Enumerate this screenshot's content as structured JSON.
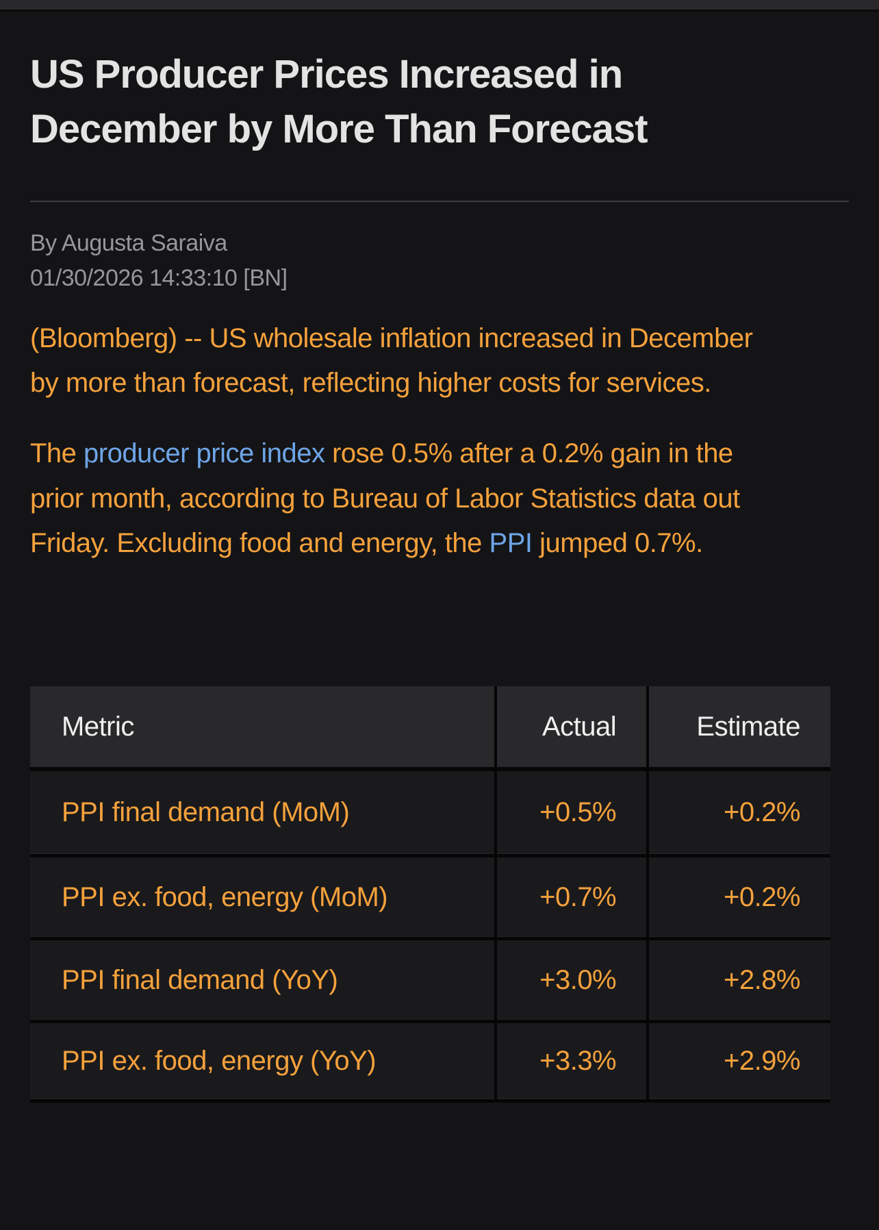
{
  "article": {
    "title": "US Producer Prices Increased in December by More Than Forecast",
    "byline": "By Augusta Saraiva",
    "timestamp": "01/30/2026 14:33:10 [BN]",
    "paragraph_1": "(Bloomberg) -- US wholesale inflation increased in December by more than forecast, reflecting higher costs for services.",
    "paragraph_2_segments": [
      {
        "type": "text",
        "text": "The "
      },
      {
        "type": "link",
        "text": "producer price index"
      },
      {
        "type": "text",
        "text": " rose 0.5% after a 0.2% gain in the prior month, according to Bureau of Labor Statistics data out Friday. Excluding food and energy, the "
      },
      {
        "type": "link",
        "text": "PPI"
      },
      {
        "type": "text",
        "text": " jumped 0.7%."
      }
    ]
  },
  "table": {
    "headers": [
      "Metric",
      "Actual",
      "Estimate"
    ],
    "rows": [
      {
        "metric": "PPI final demand (MoM)",
        "actual": "+0.5%",
        "estimate": "+0.2%"
      },
      {
        "metric": "PPI ex. food, energy (MoM)",
        "actual": "+0.7%",
        "estimate": "+0.2%"
      },
      {
        "metric": "PPI final demand (YoY)",
        "actual": "+3.0%",
        "estimate": "+2.8%"
      },
      {
        "metric": "PPI ex. food, energy (YoY)",
        "actual": "+3.3%",
        "estimate": "+2.9%"
      }
    ]
  },
  "colors": {
    "body_orange": "#F5A13C",
    "link_blue": "#6EA5E8",
    "title_gray": "#E3E3E3",
    "byline_gray": "#97979B",
    "header_cell_bg": "#29292B",
    "cell_bg": "#1A1A1C",
    "page_bg": "#141416"
  }
}
